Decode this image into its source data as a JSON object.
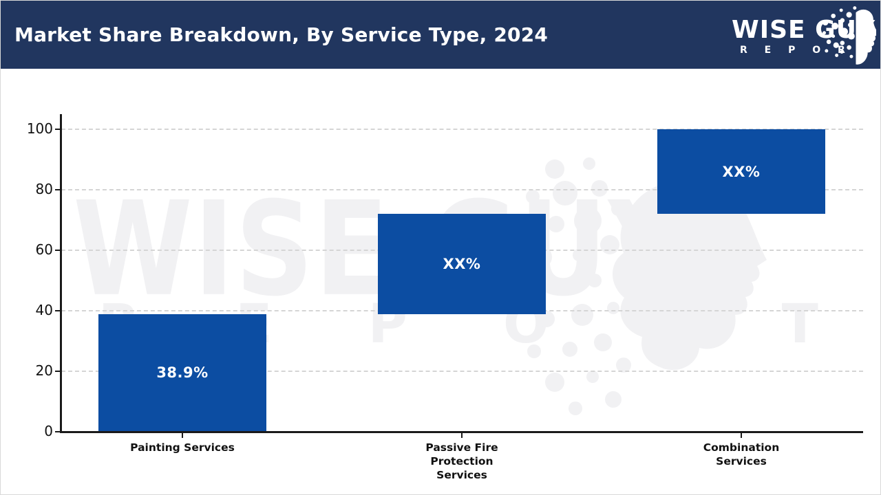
{
  "header": {
    "title": "Market Share Breakdown, By Service Type, 2024",
    "logo": {
      "brand_top": "WISE GUY",
      "brand_bottom": "REPORTS"
    }
  },
  "watermark": {
    "brand_top": "WISE GUY",
    "brand_bottom": "REPORTS"
  },
  "chart_data": {
    "type": "bar",
    "variant": "floating-segment-waterfall",
    "title": "Market Share Breakdown, By Service Type, 2024",
    "categories": [
      "Painting Services",
      "Passive Fire\nProtection\nServices",
      "Combination\nServices"
    ],
    "bars": [
      {
        "category": "Painting Services",
        "start": 0,
        "end": 38.9,
        "label": "38.9%"
      },
      {
        "category": "Passive Fire Protection Services",
        "start": 38.9,
        "end": 72,
        "label": "XX%"
      },
      {
        "category": "Combination Services",
        "start": 72,
        "end": 100,
        "label": "XX%"
      }
    ],
    "yticks": [
      0,
      20,
      40,
      60,
      80,
      100
    ],
    "ylim": [
      0,
      100
    ],
    "xlabel": "",
    "ylabel": "",
    "grid": "horizontal-dashed",
    "legend": null,
    "bar_color": "#0c4da2",
    "bar_label_color": "#ffffff"
  },
  "colors": {
    "header_bg": "#21365f",
    "bar": "#0c4da2",
    "grid": "#d5d5d5",
    "axis": "#1a1a1a",
    "watermark": "#f1f1f3",
    "page_border": "#d9d9d9"
  }
}
